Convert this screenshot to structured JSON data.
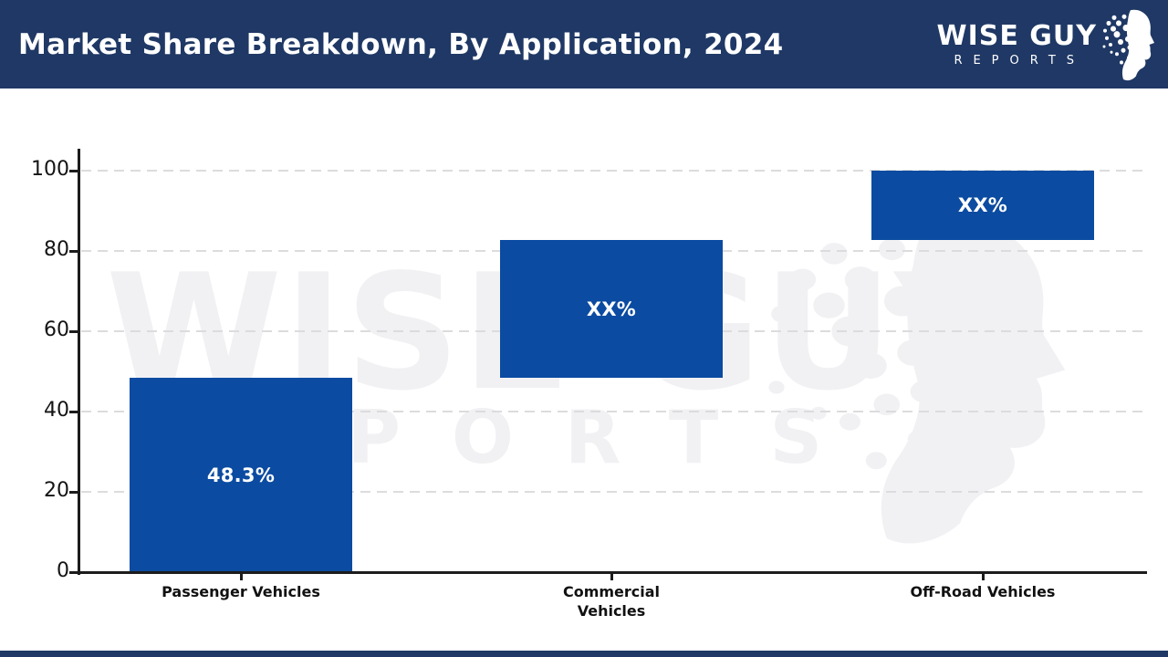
{
  "header": {
    "title": "Market Share Breakdown, By Application, 2024",
    "logo": {
      "line1": "WISE GUY",
      "line2": "REPORTS"
    }
  },
  "watermark": {
    "line1": "WISE GUY",
    "line2": "REPORTS"
  },
  "footer": {},
  "colors": {
    "header_bg": "#1F3865",
    "footer_bg": "#1F3865",
    "bar_blue": "#0B4BA1",
    "watermark_gray": "#F1F1F4",
    "gridline_gray": "#DCDCDE",
    "axis_black": "#1C1C1C"
  },
  "chart_data": {
    "type": "bar",
    "subtype": "waterfall",
    "title": "Market Share Breakdown, By Application, 2024",
    "categories": [
      "Passenger Vehicles",
      "Commercial\nVehicles",
      "Off-Road Vehicles"
    ],
    "segments": [
      {
        "category": "Passenger Vehicles",
        "start": 0,
        "end": 48.3,
        "label": "48.3%"
      },
      {
        "category": "Commercial\nVehicles",
        "start": 48.3,
        "end": 82.8,
        "label": "XX%"
      },
      {
        "category": "Off-Road Vehicles",
        "start": 82.8,
        "end": 100,
        "label": "XX%"
      }
    ],
    "values_shown": [
      "48.3%",
      "XX%",
      "XX%"
    ],
    "ylim": [
      0,
      100
    ],
    "yticks": [
      0,
      20,
      40,
      60,
      80,
      100
    ],
    "grid": "horizontal-dashed",
    "legend": "none",
    "bar_color": "#0B4BA1",
    "bar_label_color": "#FFFFFF"
  }
}
